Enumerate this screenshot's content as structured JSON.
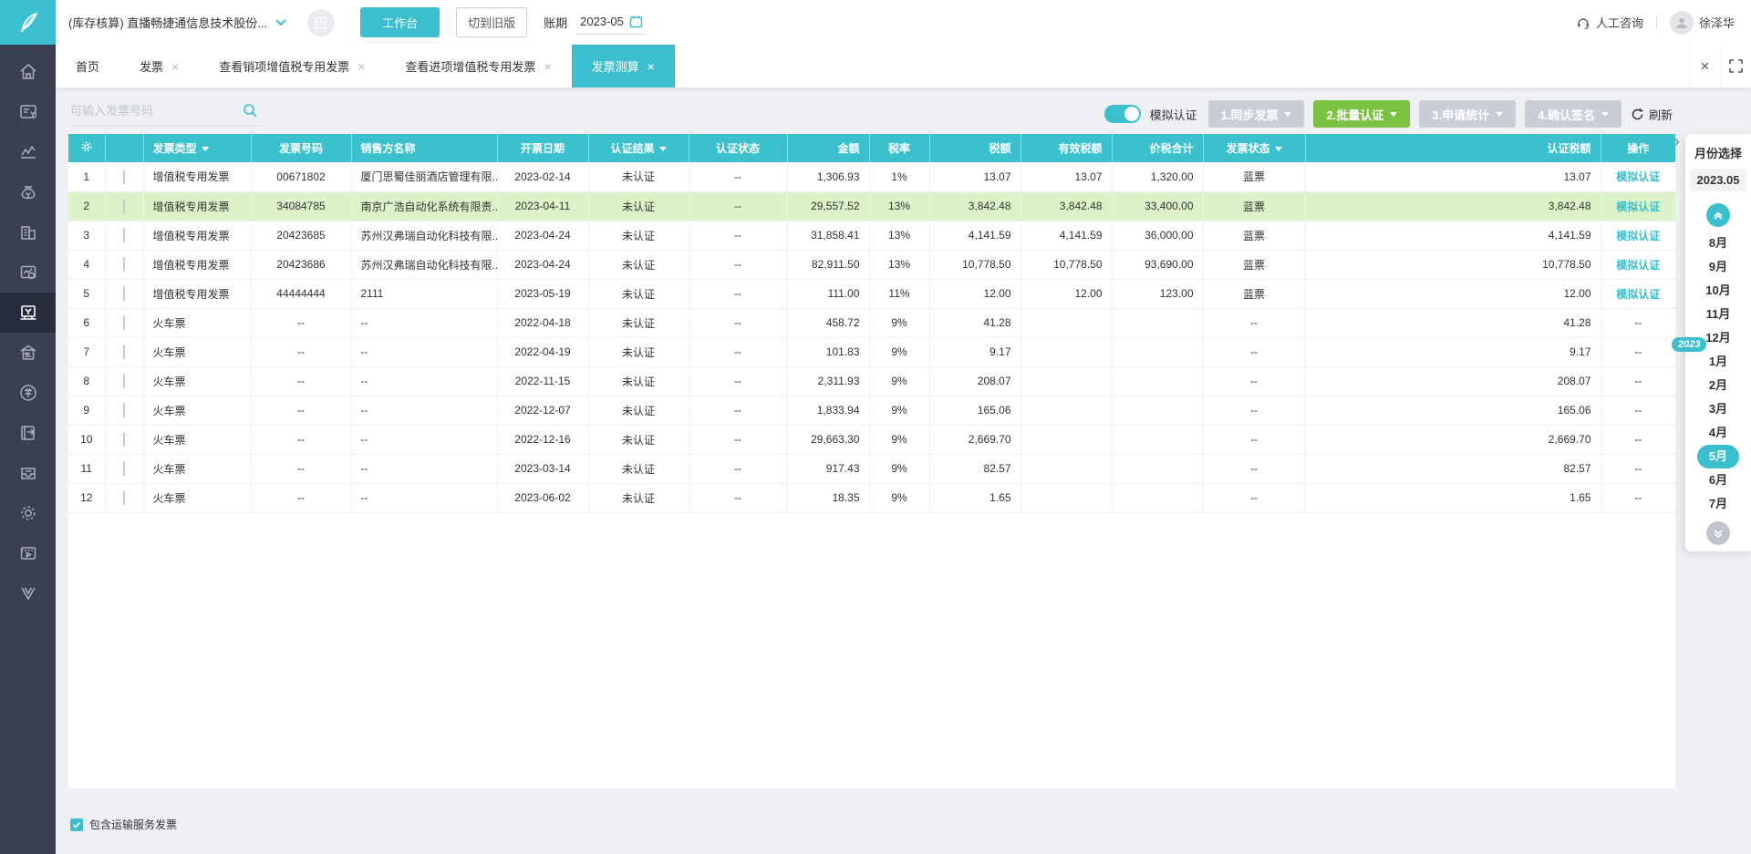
{
  "colors": {
    "teal": "#3bbfce",
    "green": "#7cc241",
    "row_highlight": "#dcf3c8",
    "sidebar": "#3a3f51",
    "header_teal": "#3bc0cd"
  },
  "topbar": {
    "company": "(库存核算) 直播畅捷通信息技术股份...",
    "workbench": "工作台",
    "switch_old": "切到旧版",
    "period_label": "账期",
    "period_value": "2023-05",
    "support": "人工咨询",
    "user": "徐泽华"
  },
  "tabs": [
    {
      "label": "首页",
      "closable": false,
      "active": false
    },
    {
      "label": "发票",
      "closable": true,
      "active": false
    },
    {
      "label": "查看销项增值税专用发票",
      "closable": true,
      "active": false
    },
    {
      "label": "查看进项增值税专用发票",
      "closable": true,
      "active": false
    },
    {
      "label": "发票测算",
      "closable": true,
      "active": true
    }
  ],
  "toolbar": {
    "search_placeholder": "可输入发票号码",
    "toggle_label": "模拟认证",
    "toggle_on": true,
    "buttons": [
      {
        "label": "1.同步发票",
        "style": "gray"
      },
      {
        "label": "2.批量认证",
        "style": "green"
      },
      {
        "label": "3.申请统计",
        "style": "gray"
      },
      {
        "label": "4.确认签名",
        "style": "gray"
      }
    ],
    "refresh": "刷新"
  },
  "table": {
    "columns": [
      {
        "type": "gear",
        "label": ""
      },
      {
        "type": "checkbox",
        "label": ""
      },
      {
        "label": "发票类型",
        "sort": true
      },
      {
        "label": "发票号码"
      },
      {
        "label": "销售方名称"
      },
      {
        "label": "开票日期"
      },
      {
        "label": "认证结果",
        "sort": true
      },
      {
        "label": "认证状态"
      },
      {
        "label": "金额"
      },
      {
        "label": "税率"
      },
      {
        "label": "税额"
      },
      {
        "label": "有效税额"
      },
      {
        "label": "价税合计"
      },
      {
        "label": "发票状态",
        "sort": true
      },
      {
        "label": "认证税额"
      },
      {
        "label": "操作"
      }
    ],
    "rows": [
      {
        "num": "1",
        "type": "增值税专用发票",
        "number": "00671802",
        "seller": "厦门思蜀佳丽酒店管理有限...",
        "date": "2023-02-14",
        "result": "未认证",
        "status": "--",
        "amount": "1,306.93",
        "rate": "1%",
        "tax": "13.07",
        "valid_tax": "13.07",
        "total": "1,320.00",
        "inv_status": "蓝票",
        "auth_tax": "13.07",
        "action": "模拟认证",
        "highlight": false
      },
      {
        "num": "2",
        "type": "增值税专用发票",
        "number": "34084785",
        "seller": "南京广浩自动化系统有限责...",
        "date": "2023-04-11",
        "result": "未认证",
        "status": "--",
        "amount": "29,557.52",
        "rate": "13%",
        "tax": "3,842.48",
        "valid_tax": "3,842.48",
        "total": "33,400.00",
        "inv_status": "蓝票",
        "auth_tax": "3,842.48",
        "action": "模拟认证",
        "highlight": true
      },
      {
        "num": "3",
        "type": "增值税专用发票",
        "number": "20423685",
        "seller": "苏州汉弗瑞自动化科技有限...",
        "date": "2023-04-24",
        "result": "未认证",
        "status": "--",
        "amount": "31,858.41",
        "rate": "13%",
        "tax": "4,141.59",
        "valid_tax": "4,141.59",
        "total": "36,000.00",
        "inv_status": "蓝票",
        "auth_tax": "4,141.59",
        "action": "模拟认证",
        "highlight": false
      },
      {
        "num": "4",
        "type": "增值税专用发票",
        "number": "20423686",
        "seller": "苏州汉弗瑞自动化科技有限...",
        "date": "2023-04-24",
        "result": "未认证",
        "status": "--",
        "amount": "82,911.50",
        "rate": "13%",
        "tax": "10,778.50",
        "valid_tax": "10,778.50",
        "total": "93,690.00",
        "inv_status": "蓝票",
        "auth_tax": "10,778.50",
        "action": "模拟认证",
        "highlight": false
      },
      {
        "num": "5",
        "type": "增值税专用发票",
        "number": "44444444",
        "seller": "2111",
        "date": "2023-05-19",
        "result": "未认证",
        "status": "--",
        "amount": "111.00",
        "rate": "11%",
        "tax": "12.00",
        "valid_tax": "12.00",
        "total": "123.00",
        "inv_status": "蓝票",
        "auth_tax": "12.00",
        "action": "模拟认证",
        "highlight": false
      },
      {
        "num": "6",
        "type": "火车票",
        "number": "--",
        "seller": "--",
        "date": "2022-04-18",
        "result": "未认证",
        "status": "--",
        "amount": "458.72",
        "rate": "9%",
        "tax": "41.28",
        "valid_tax": "",
        "total": "",
        "inv_status": "--",
        "auth_tax": "41.28",
        "action": "--",
        "highlight": false
      },
      {
        "num": "7",
        "type": "火车票",
        "number": "--",
        "seller": "--",
        "date": "2022-04-19",
        "result": "未认证",
        "status": "--",
        "amount": "101.83",
        "rate": "9%",
        "tax": "9.17",
        "valid_tax": "",
        "total": "",
        "inv_status": "--",
        "auth_tax": "9.17",
        "action": "--",
        "highlight": false
      },
      {
        "num": "8",
        "type": "火车票",
        "number": "--",
        "seller": "--",
        "date": "2022-11-15",
        "result": "未认证",
        "status": "--",
        "amount": "2,311.93",
        "rate": "9%",
        "tax": "208.07",
        "valid_tax": "",
        "total": "",
        "inv_status": "--",
        "auth_tax": "208.07",
        "action": "--",
        "highlight": false
      },
      {
        "num": "9",
        "type": "火车票",
        "number": "--",
        "seller": "--",
        "date": "2022-12-07",
        "result": "未认证",
        "status": "--",
        "amount": "1,833.94",
        "rate": "9%",
        "tax": "165.06",
        "valid_tax": "",
        "total": "",
        "inv_status": "--",
        "auth_tax": "165.06",
        "action": "--",
        "highlight": false
      },
      {
        "num": "10",
        "type": "火车票",
        "number": "--",
        "seller": "--",
        "date": "2022-12-16",
        "result": "未认证",
        "status": "--",
        "amount": "29,663.30",
        "rate": "9%",
        "tax": "2,669.70",
        "valid_tax": "",
        "total": "",
        "inv_status": "--",
        "auth_tax": "2,669.70",
        "action": "--",
        "highlight": false
      },
      {
        "num": "11",
        "type": "火车票",
        "number": "--",
        "seller": "--",
        "date": "2023-03-14",
        "result": "未认证",
        "status": "--",
        "amount": "917.43",
        "rate": "9%",
        "tax": "82.57",
        "valid_tax": "",
        "total": "",
        "inv_status": "--",
        "auth_tax": "82.57",
        "action": "--",
        "highlight": false
      },
      {
        "num": "12",
        "type": "火车票",
        "number": "--",
        "seller": "--",
        "date": "2023-06-02",
        "result": "未认证",
        "status": "--",
        "amount": "18.35",
        "rate": "9%",
        "tax": "1.65",
        "valid_tax": "",
        "total": "",
        "inv_status": "--",
        "auth_tax": "1.65",
        "action": "--",
        "highlight": false
      }
    ]
  },
  "month_panel": {
    "title": "月份选择",
    "period": "2023.05",
    "year_badge": "2023",
    "months": [
      {
        "label": "8月",
        "selected": false
      },
      {
        "label": "9月",
        "selected": false
      },
      {
        "label": "10月",
        "selected": false
      },
      {
        "label": "11月",
        "selected": false
      },
      {
        "label": "12月",
        "selected": false
      },
      {
        "label": "1月",
        "selected": false
      },
      {
        "label": "2月",
        "selected": false
      },
      {
        "label": "3月",
        "selected": false
      },
      {
        "label": "4月",
        "selected": false
      },
      {
        "label": "5月",
        "selected": true
      },
      {
        "label": "6月",
        "selected": false
      },
      {
        "label": "7月",
        "selected": false
      }
    ]
  },
  "footer": {
    "label": "包含运输服务发票",
    "checked": true
  }
}
